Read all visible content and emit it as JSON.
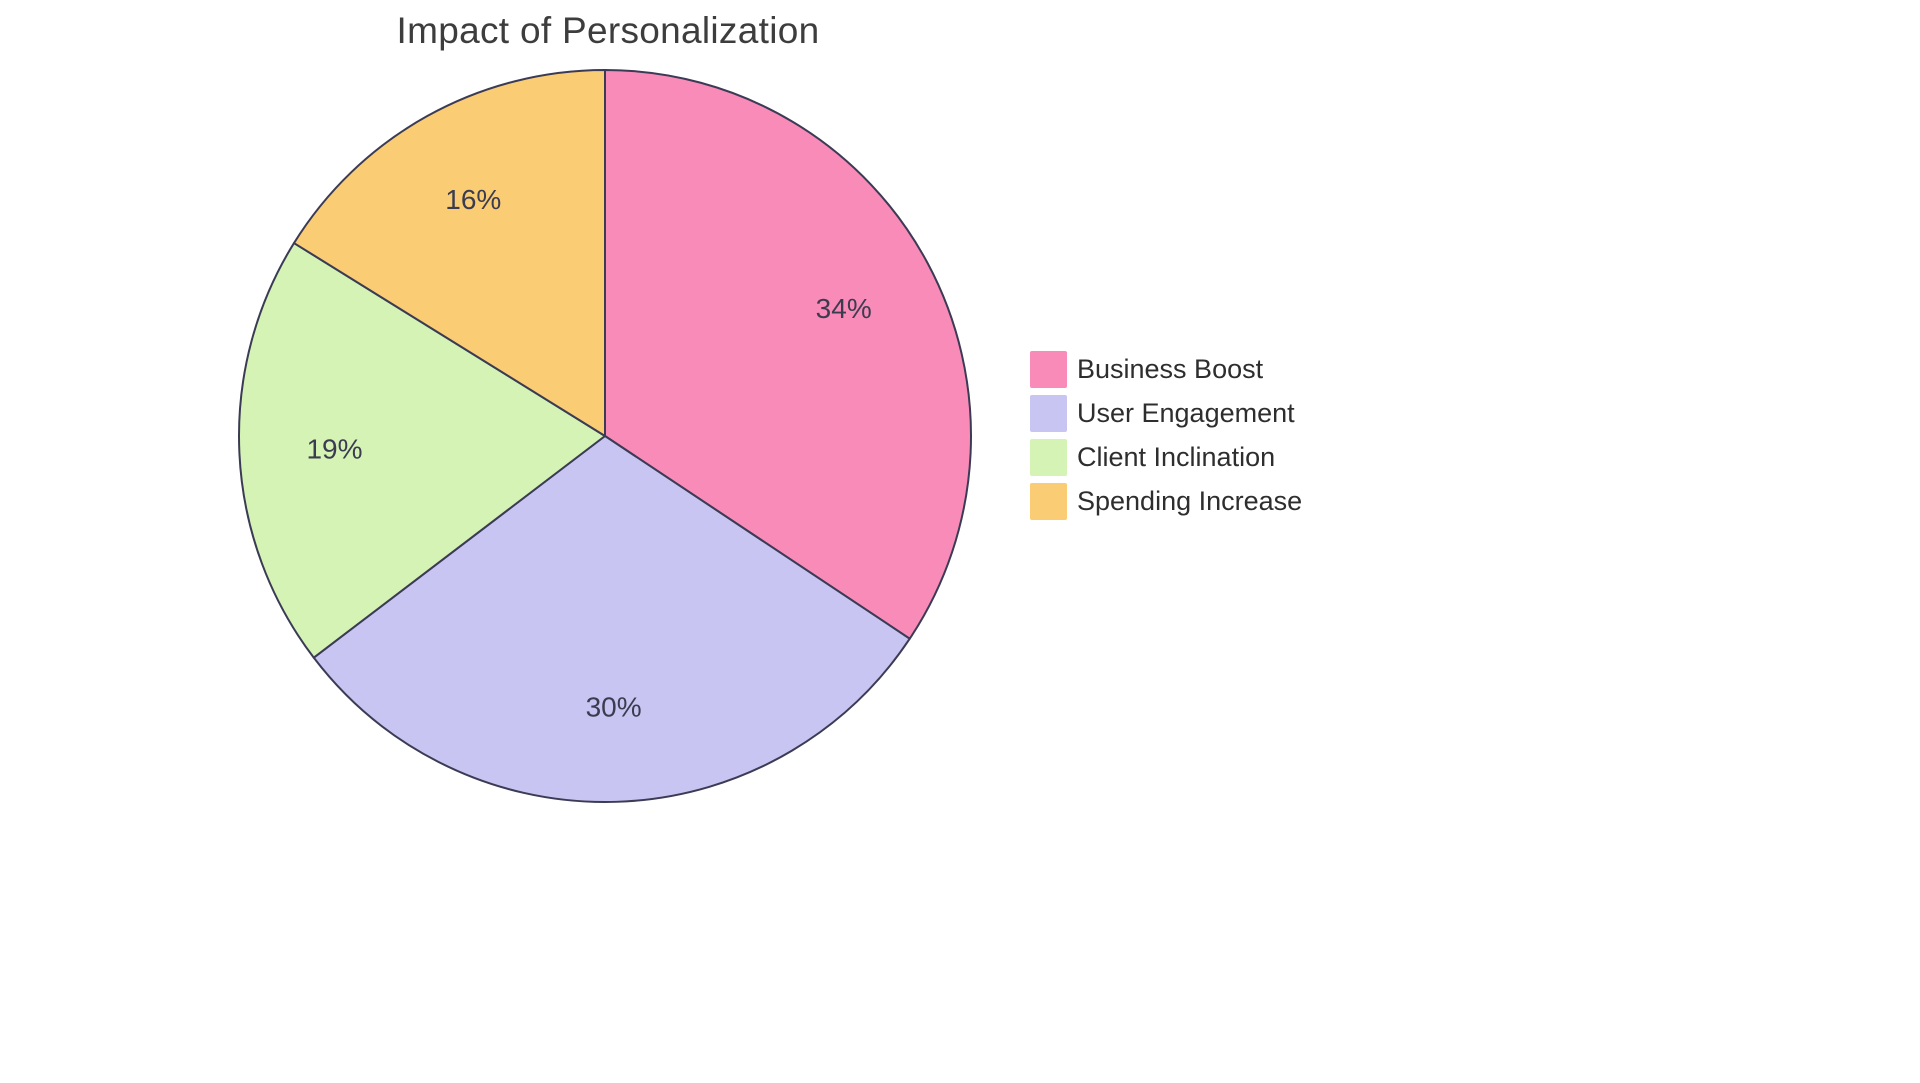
{
  "chart_data": {
    "type": "pie",
    "title": "Impact of Personalization",
    "categories": [
      "Business Boost",
      "User Engagement",
      "Client Inclination",
      "Spending Increase"
    ],
    "values": [
      34,
      30,
      19,
      16
    ],
    "slice_labels": [
      "34%",
      "30%",
      "19%",
      "16%"
    ],
    "colors": [
      "#F98BB9",
      "#C8C5F2",
      "#D4F3B4",
      "#FACD74"
    ],
    "stroke_color": "#3B3B55",
    "label_color": "#3C3C50",
    "title_color": "#3D3D3D",
    "background": "#FFFFFF",
    "legend_position": "right",
    "start_angle": "top",
    "direction": "clockwise"
  }
}
